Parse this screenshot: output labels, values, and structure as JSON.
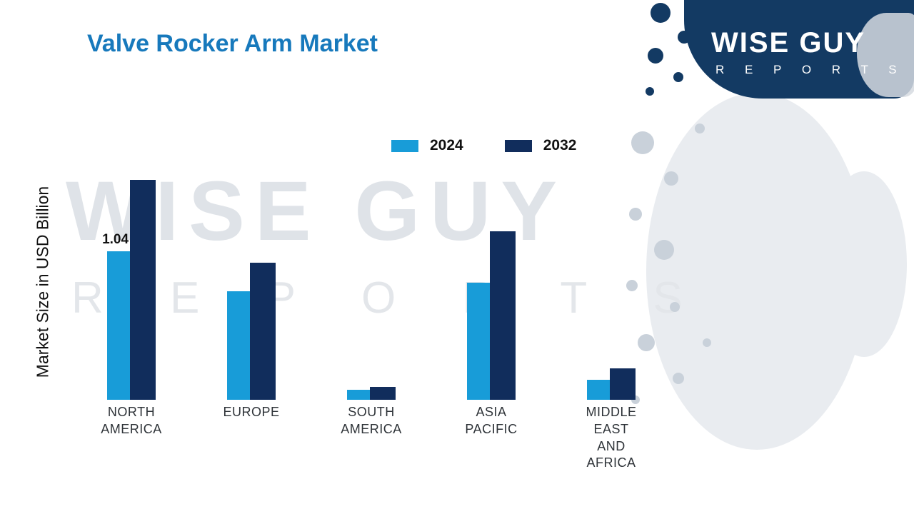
{
  "page": {
    "title": "Valve Rocker Arm Market"
  },
  "logo": {
    "line1": "WISE GUY",
    "line2": "R E P O R T S"
  },
  "watermark": {
    "line1": "WISE GUY",
    "line2": "R E P O R T S"
  },
  "colors": {
    "title_blue": "#1779bc",
    "series_2024": "#189cd8",
    "series_2032": "#112d5c",
    "logo_navy": "#133a63"
  },
  "chart_data": {
    "type": "bar",
    "title": "Valve Rocker Arm Market",
    "xlabel": "",
    "ylabel": "Market Size in USD Billion",
    "categories": [
      "NORTH\nAMERICA",
      "EUROPE",
      "SOUTH\nAMERICA",
      "ASIA\nPACIFIC",
      "MIDDLE\nEAST\nAND\nAFRICA"
    ],
    "series": [
      {
        "name": "2024",
        "color": "#189cd8",
        "values": [
          1.04,
          0.76,
          0.07,
          0.82,
          0.14
        ]
      },
      {
        "name": "2032",
        "color": "#112d5c",
        "values": [
          1.54,
          0.96,
          0.09,
          1.18,
          0.22
        ]
      }
    ],
    "annotations": [
      {
        "series": 0,
        "category": 0,
        "text": "1.04"
      }
    ],
    "ylim": [
      0,
      1.6
    ],
    "grid": false,
    "axes_visible": false,
    "legend_position": "top"
  }
}
